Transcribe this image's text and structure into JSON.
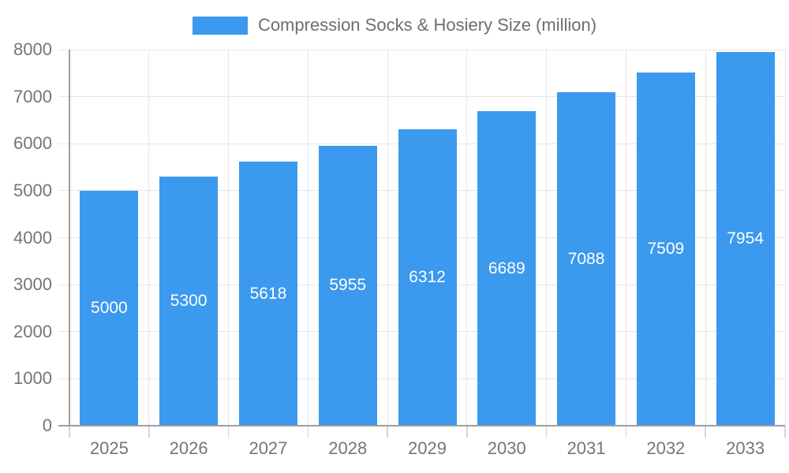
{
  "legend": {
    "label": "Compression Socks & Hosiery Size (million)"
  },
  "chart_data": {
    "type": "bar",
    "title": "Compression Socks & Hosiery Size (million)",
    "categories": [
      "2025",
      "2026",
      "2027",
      "2028",
      "2029",
      "2030",
      "2031",
      "2032",
      "2033"
    ],
    "values": [
      5000,
      5300,
      5618,
      5955,
      6312,
      6689,
      7088,
      7509,
      7954
    ],
    "xlabel": "",
    "ylabel": "",
    "ylim": [
      0,
      8000
    ],
    "yticks": [
      0,
      1000,
      2000,
      3000,
      4000,
      5000,
      6000,
      7000,
      8000
    ],
    "grid": true,
    "legend_position": "top-center",
    "value_labels": "inside-center",
    "colors": {
      "bar": "#3B99EE",
      "value_label": "#FFFFFF",
      "grid_line": "#E6E6E6",
      "axis_line": "#9E9E9E",
      "axis_tick": "#D5D5D5",
      "tick_label": "#757575",
      "legend_text": "#6E6E6E",
      "background": "#FFFFFF"
    }
  }
}
